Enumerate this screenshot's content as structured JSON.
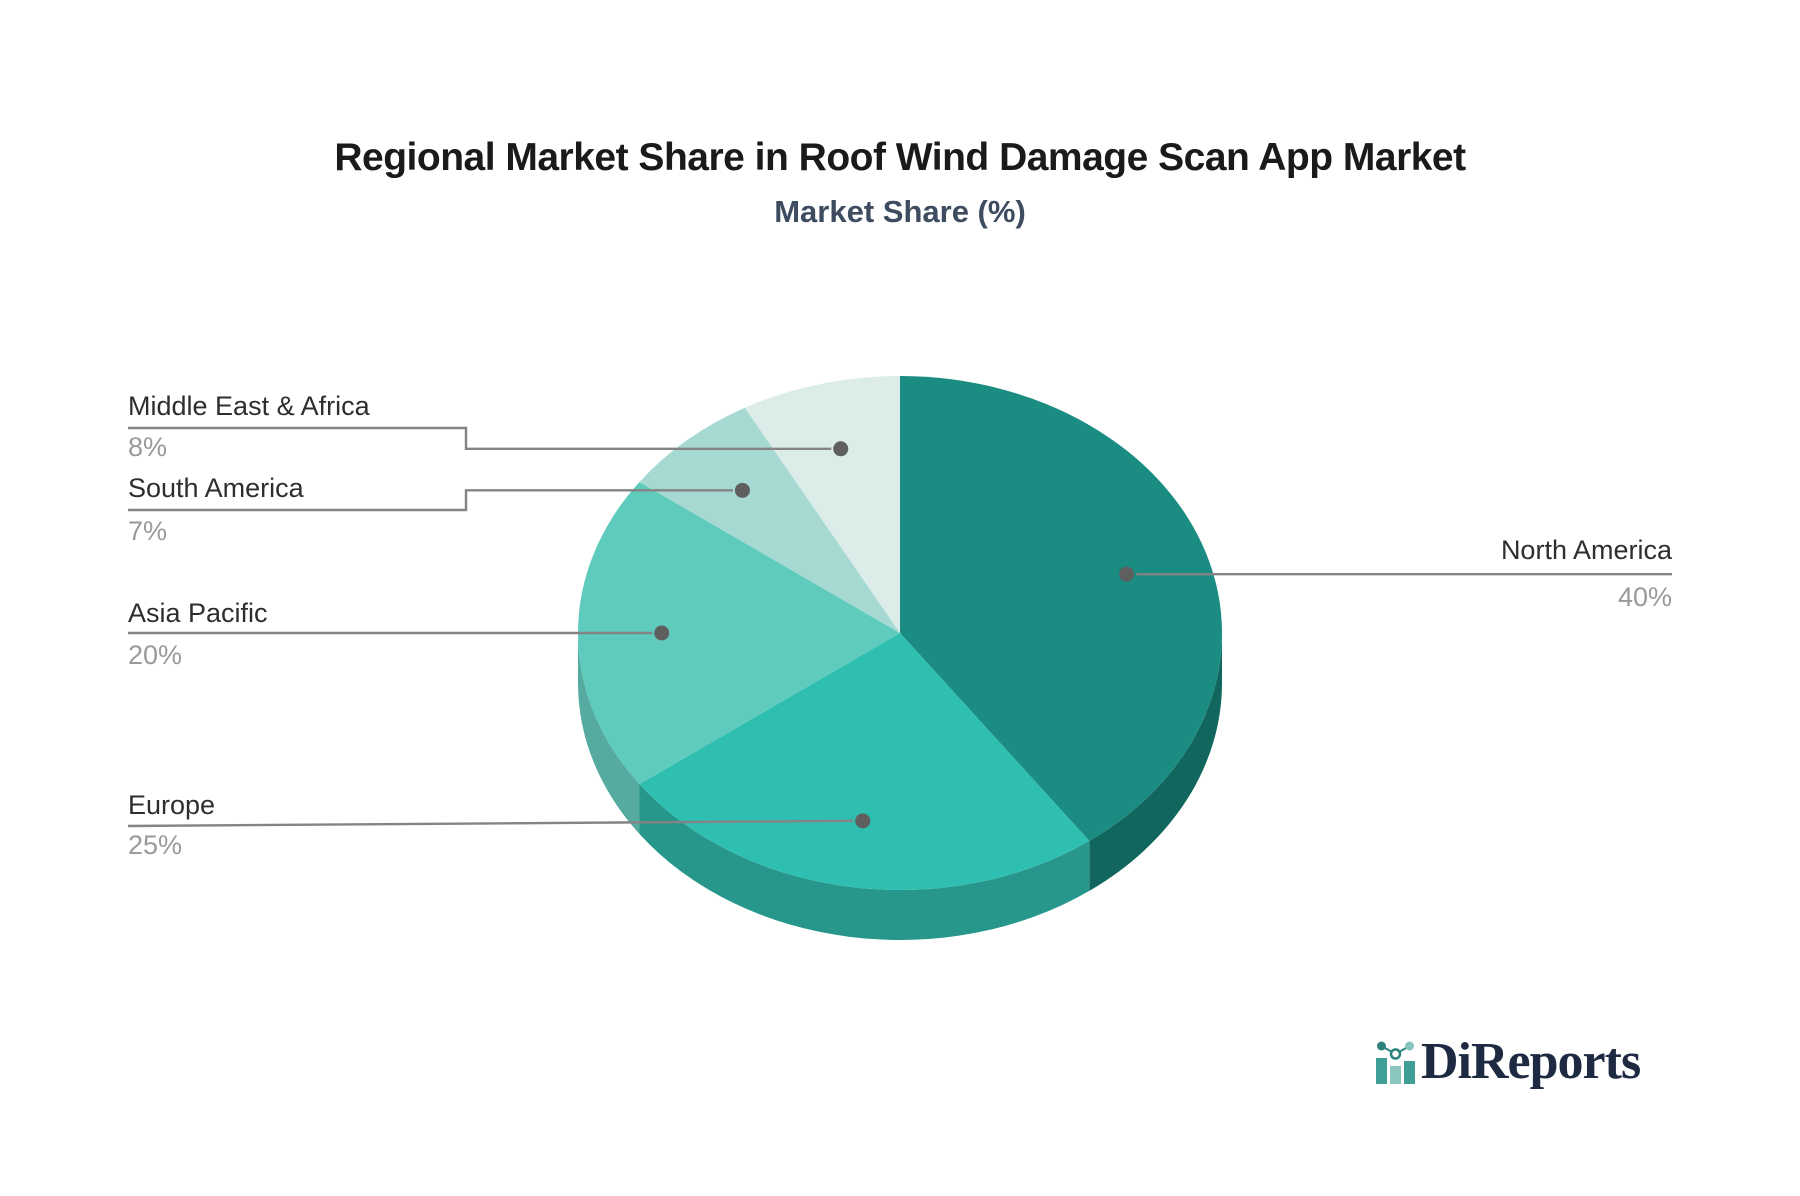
{
  "chart_data": {
    "type": "pie",
    "style": "3d-pie-with-callouts",
    "title": "Regional Market Share in Roof Wind Damage Scan App Market",
    "subtitle": "Market Share (%)",
    "unit": "%",
    "start_angle_deg": -90,
    "order": "clockwise",
    "legend": "none",
    "slices": [
      {
        "name": "North America",
        "value": 40,
        "pct_label": "40%",
        "color": "#1a8c81",
        "rim_color": "#11675e"
      },
      {
        "name": "Europe",
        "value": 25,
        "pct_label": "25%",
        "color": "#2fbfb1",
        "rim_color": "#27978c"
      },
      {
        "name": "Asia Pacific",
        "value": 20,
        "pct_label": "20%",
        "color": "#5fcbbd",
        "rim_color": "#55ab9f"
      },
      {
        "name": "South America",
        "value": 7,
        "pct_label": "7%",
        "color": "#a5d9d2",
        "rim_color": "#8fc4bc"
      },
      {
        "name": "Middle East & Africa",
        "value": 8,
        "pct_label": "8%",
        "color": "#dcece9",
        "rim_color": "#c3d9d5"
      }
    ],
    "label_text_color": "#2e2e2e",
    "pct_text_color": "#9a9a9a",
    "connector_color": "#848484",
    "connector_dot_color": "#5f5f5f"
  },
  "logo": {
    "text": "DiReports"
  }
}
